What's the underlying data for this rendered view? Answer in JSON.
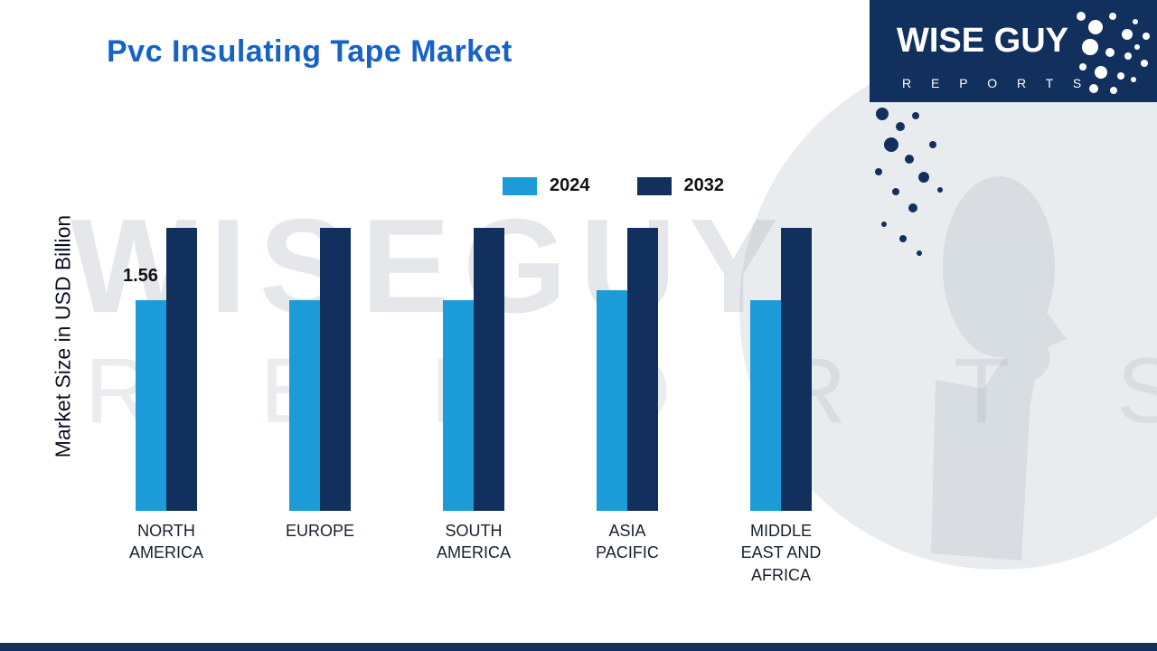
{
  "page": {
    "title": "Pvc Insulating Tape Market"
  },
  "logo": {
    "brand": "WISE GUY",
    "reports": "R E P O R T S"
  },
  "watermark": {
    "line1": "WISEGUY",
    "line2": "R E P O R T S"
  },
  "chart_data": {
    "type": "bar",
    "title": "Pvc Insulating Tape Market",
    "ylabel": "Market Size in USD Billion",
    "xlabel": "",
    "categories": [
      "NORTH AMERICA",
      "EUROPE",
      "SOUTH AMERICA",
      "ASIA PACIFIC",
      "MIDDLE EAST AND AFRICA"
    ],
    "series": [
      {
        "name": "2024",
        "color": "#1b9cd8",
        "values": [
          1.56,
          1.56,
          1.56,
          1.64,
          1.56
        ]
      },
      {
        "name": "2032",
        "color": "#12305e",
        "values": [
          2.1,
          2.1,
          2.1,
          2.1,
          2.1
        ]
      }
    ],
    "annotation": {
      "text": "1.56",
      "series": "2024",
      "category": "NORTH AMERICA"
    },
    "ylim": [
      0,
      2.2
    ],
    "grid": false,
    "axis_lines_visible": false,
    "legend_position": "top-center"
  },
  "colors": {
    "accent_blue": "#1b9cd8",
    "navy": "#12305e",
    "title_blue": "#1763c5",
    "background_circle": "#e9ecef"
  }
}
